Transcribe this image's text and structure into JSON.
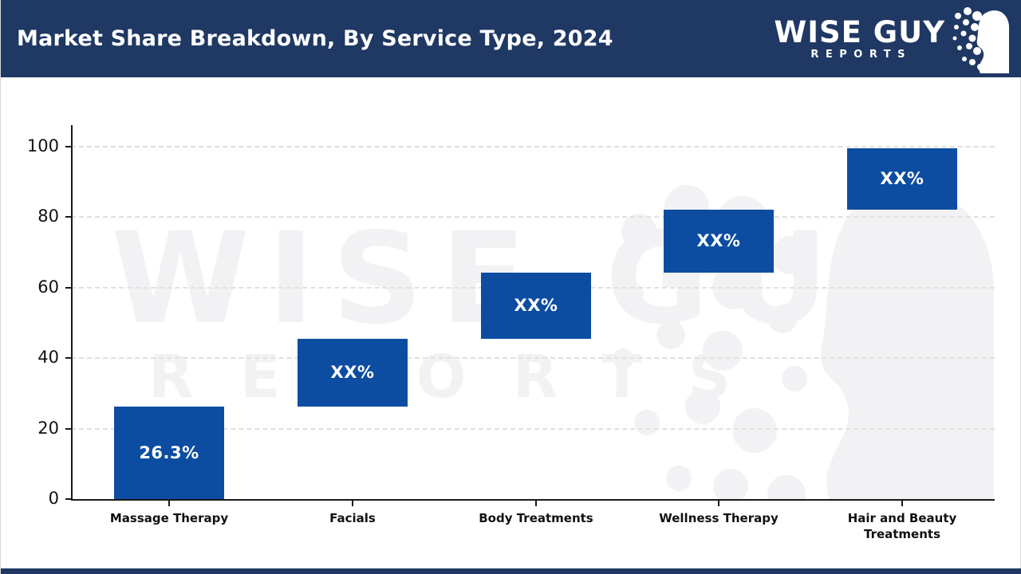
{
  "header": {
    "title": "Market Share Breakdown, By Service Type, 2024",
    "logo": {
      "line1": "WISE GUY",
      "line2": "REPORTS"
    }
  },
  "watermark": {
    "line1": "WISE GUY",
    "line2": "REPORTS"
  },
  "colors": {
    "header_bg": "#1f3864",
    "footer_bar": "#1f3864",
    "bar_fill": "#0c4da2",
    "bar_label_text": "#ffffff",
    "gridline": "#e0e0e0",
    "axis": "#1a1a1a",
    "watermark": "#f2f2f4"
  },
  "chart_data": {
    "type": "bar",
    "subtype": "waterfall-stacked",
    "title": "Market Share Breakdown, By Service Type, 2024",
    "categories": [
      "Massage Therapy",
      "Facials",
      "Body Treatments",
      "Wellness Therapy",
      "Hair and Beauty Treatments"
    ],
    "segments": [
      {
        "category": "Massage Therapy",
        "start": 0,
        "end": 26.3,
        "label": "26.3%"
      },
      {
        "category": "Facials",
        "start": 26.3,
        "end": 45.5,
        "label": "XX%"
      },
      {
        "category": "Body Treatments",
        "start": 45.5,
        "end": 64.3,
        "label": "XX%"
      },
      {
        "category": "Wellness Therapy",
        "start": 64.3,
        "end": 82.2,
        "label": "XX%"
      },
      {
        "category": "Hair and Beauty Treatments",
        "start": 82.2,
        "end": 99.5,
        "label": "XX%"
      }
    ],
    "xlabel": "",
    "ylabel": "",
    "yticks": [
      0,
      20,
      40,
      60,
      80,
      100
    ],
    "ylim": [
      0,
      106
    ],
    "grid": "horizontal-dashed",
    "legend": "none"
  }
}
